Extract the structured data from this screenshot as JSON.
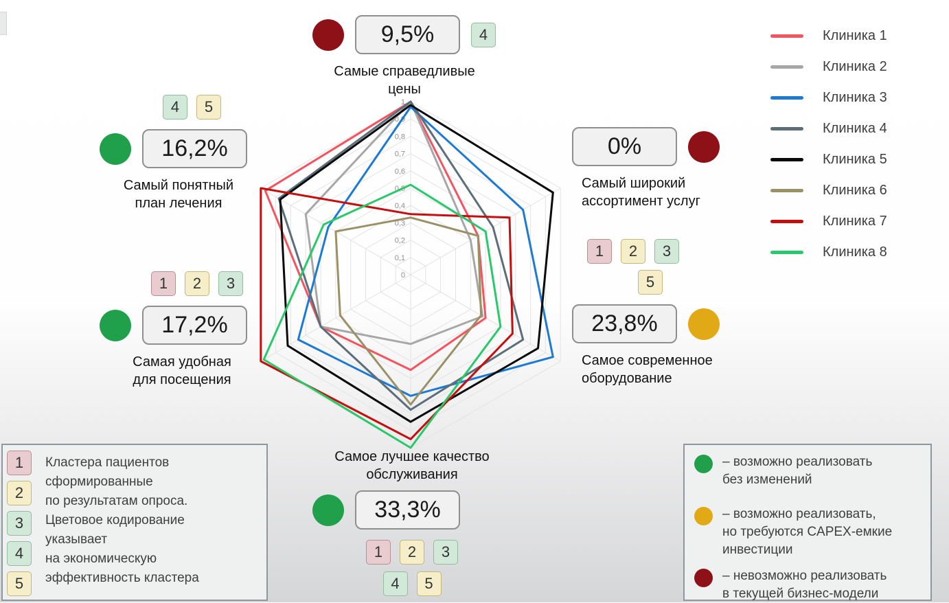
{
  "chart_data": {
    "type": "radar",
    "title": "",
    "axes": [
      "Самые справедливые цены",
      "Самый широкий ассортимент услуг",
      "Самое современное оборудование",
      "Самое лучшее качество обслуживания",
      "Самая удобная для посещения",
      "Самый понятный план лечения"
    ],
    "rmin": 0,
    "rmax": 1,
    "ticks": [
      "0",
      "0,1",
      "0,2",
      "0,3",
      "0,4",
      "0,5",
      "0,6",
      "0,7",
      "0,8",
      "0,9",
      "1"
    ],
    "grid": true,
    "legend_position": "right",
    "series": [
      {
        "name": "Клиника 1",
        "color": "#f4545f",
        "values": [
          1.0,
          0.45,
          0.5,
          0.55,
          0.6,
          0.97
        ]
      },
      {
        "name": "Клиника 2",
        "color": "#a7a7a7",
        "values": [
          1.0,
          0.4,
          0.48,
          0.4,
          0.6,
          0.7
        ]
      },
      {
        "name": "Клиника 3",
        "color": "#1d7ad3",
        "values": [
          0.97,
          0.75,
          0.95,
          0.7,
          0.75,
          0.55
        ]
      },
      {
        "name": "Клиника 4",
        "color": "#5c6e79",
        "values": [
          1.0,
          0.55,
          0.75,
          0.78,
          0.6,
          0.88
        ]
      },
      {
        "name": "Клиника 5",
        "color": "#0a0a0a",
        "values": [
          0.98,
          0.95,
          0.85,
          0.85,
          0.82,
          0.87
        ]
      },
      {
        "name": "Клиника 6",
        "color": "#9b9166",
        "values": [
          0.33,
          0.45,
          0.47,
          0.75,
          0.47,
          0.5
        ]
      },
      {
        "name": "Клиника 7",
        "color": "#c40f0f",
        "values": [
          0.35,
          0.66,
          0.68,
          0.95,
          1.0,
          1.0
        ]
      },
      {
        "name": "Клиника 8",
        "color": "#29c96b",
        "values": [
          0.52,
          0.5,
          0.6,
          1.0,
          0.98,
          0.58
        ]
      }
    ]
  },
  "status_colors": {
    "green": "#21a04c",
    "yellow": "#e0a915",
    "red": "#8e1117"
  },
  "badge_colors": {
    "pink": {
      "bg": "#e9ccd0",
      "border": "#b98f96"
    },
    "cream": {
      "bg": "#f6eec8",
      "border": "#c3b77e"
    },
    "green": {
      "bg": "#d2e8d8",
      "border": "#93bb9e"
    }
  },
  "callouts": {
    "prices": {
      "value": "9,5%",
      "status": "red",
      "label": "Самые справедливые\nцены",
      "badges": [
        {
          "n": "4",
          "color": "green"
        }
      ]
    },
    "plan": {
      "value": "16,2%",
      "status": "green",
      "label": "Самый понятный\nплан лечения",
      "badges": [
        {
          "n": "4",
          "color": "green"
        },
        {
          "n": "5",
          "color": "cream"
        }
      ]
    },
    "visiting": {
      "value": "17,2%",
      "status": "green",
      "label": "Самая удобная\nдля посещения",
      "badges": [
        {
          "n": "1",
          "color": "pink"
        },
        {
          "n": "2",
          "color": "cream"
        },
        {
          "n": "3",
          "color": "green"
        }
      ]
    },
    "services": {
      "value": "0%",
      "status": "red",
      "label": "Самый широкий\nассортимент услуг",
      "badges": []
    },
    "equipment": {
      "value": "23,8%",
      "status": "yellow",
      "label": "Самое современное\nоборудование",
      "badges_row1": [
        {
          "n": "1",
          "color": "pink"
        },
        {
          "n": "2",
          "color": "cream"
        },
        {
          "n": "3",
          "color": "green"
        }
      ],
      "badges_row2": [
        {
          "n": "5",
          "color": "cream"
        }
      ]
    },
    "quality": {
      "value": "33,3%",
      "status": "green",
      "label": "Самое лучшее качество\nобслуживания",
      "badges_row1": [
        {
          "n": "1",
          "color": "pink"
        },
        {
          "n": "2",
          "color": "cream"
        },
        {
          "n": "3",
          "color": "green"
        }
      ],
      "badges_row2": [
        {
          "n": "4",
          "color": "green"
        },
        {
          "n": "5",
          "color": "cream"
        }
      ]
    }
  },
  "notes": {
    "clusters": {
      "badges": [
        {
          "n": "1",
          "color": "pink"
        },
        {
          "n": "2",
          "color": "cream"
        },
        {
          "n": "3",
          "color": "green"
        },
        {
          "n": "4",
          "color": "green"
        },
        {
          "n": "5",
          "color": "cream"
        }
      ],
      "text": "Кластера пациентов\nсформированные\nпо результатам опроса.\nЦветовое кодирование\nуказывает\nна экономическую\nэффективность кластера"
    },
    "statuses": [
      {
        "status": "green",
        "text": "– возможно реализовать\nбез изменений"
      },
      {
        "status": "yellow",
        "text": "– возможно реализовать,\nно требуются CAPEX-емкие\nинвестиции"
      },
      {
        "status": "red",
        "text": "– невозможно реализовать\nв текущей бизнес-модели"
      }
    ]
  }
}
